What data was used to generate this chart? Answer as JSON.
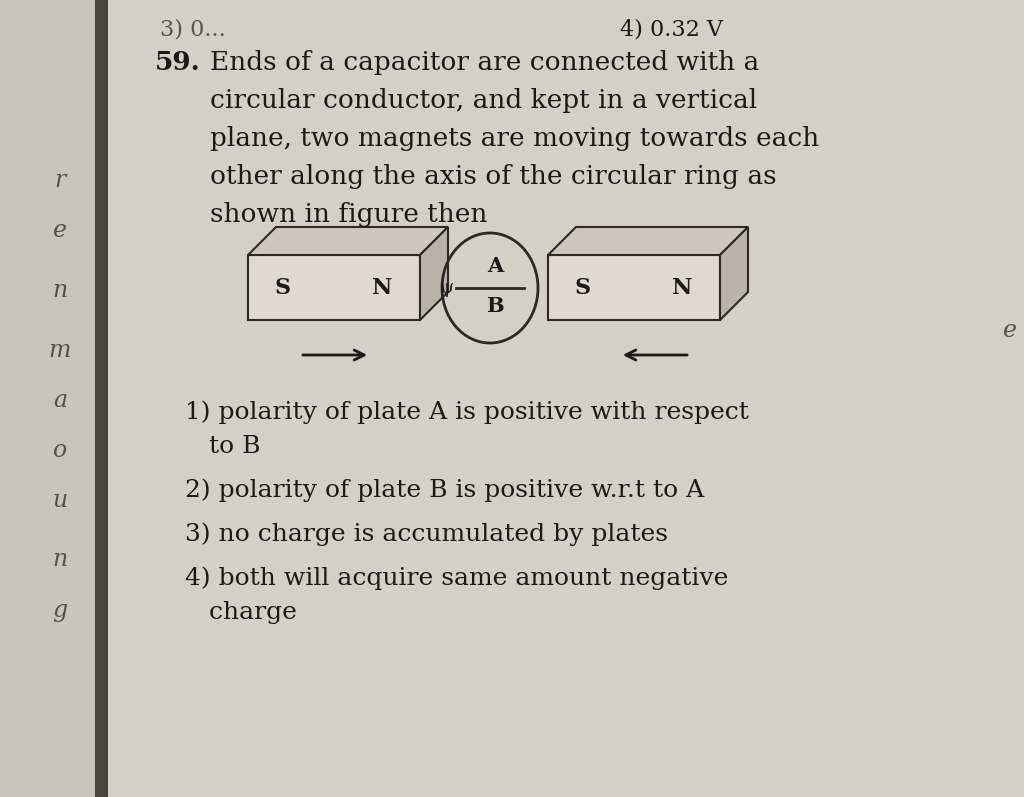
{
  "bg_color": "#d2d0c8",
  "left_margin_color": "#b8b5ae",
  "spine_color": "#555050",
  "text_color": "#1a1a1a",
  "magnet_face_color": "#dedad2",
  "magnet_top_color": "#ccc8c0",
  "magnet_side_color": "#b8b4ac",
  "circle_color": "#d8d4cc",
  "edge_color": "#2a2828",
  "question_number": "59.",
  "question_line1": "Ends of a capacitor are connected with a",
  "question_line2": "circular conductor, and kept in a vertical",
  "question_line3": "plane, two magnets are moving towards each",
  "question_line4": "other along the axis of the circular ring as",
  "question_line5": "shown in figure then",
  "top_left_text": "3) 0...",
  "top_right_text": "4) 0.32 V",
  "opt1a": "1) polarity of plate A is positive with respect",
  "opt1b": "   to B",
  "opt2": "2) polarity of plate B is positive w.r.t to A",
  "opt3": "3) no charge is accumulated by plates",
  "opt4a": "4) both will acquire same amount negative",
  "opt4b": "   charge",
  "plate_a": "A",
  "plate_b": "B",
  "label_s": "S",
  "label_n": "N",
  "font_size_q": 19,
  "font_size_opt": 18,
  "font_size_label": 16,
  "font_size_header": 16
}
